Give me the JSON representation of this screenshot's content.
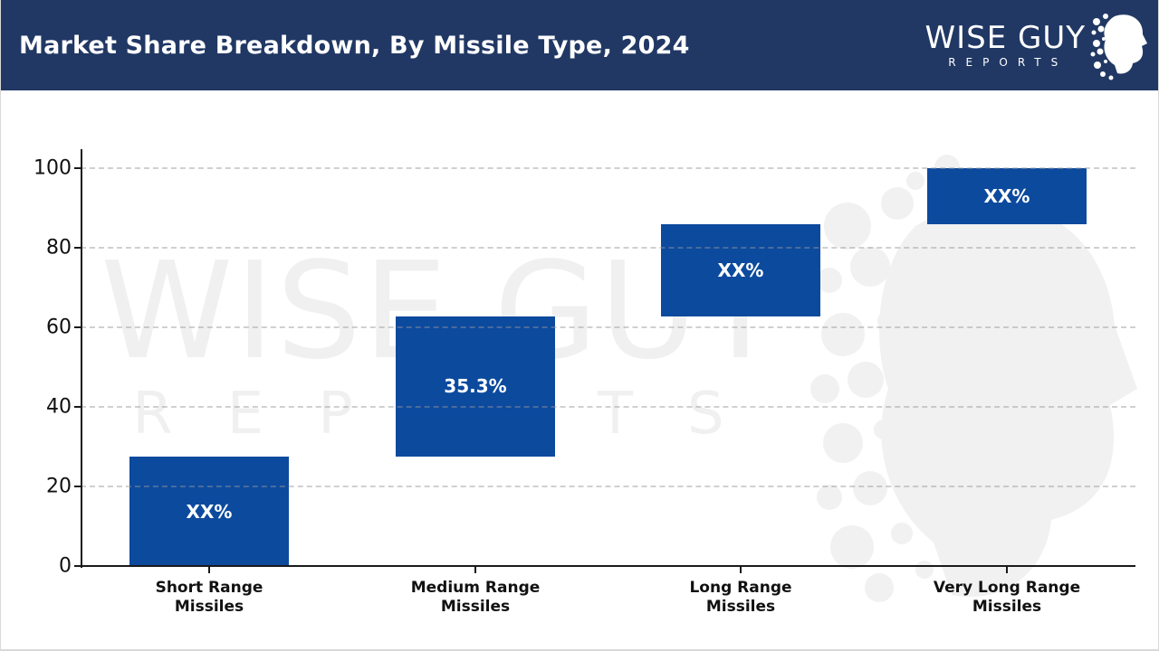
{
  "header": {
    "title": "Market Share Breakdown, By Missile Type, 2024",
    "bg_color": "#213864",
    "logo": {
      "line1": "WISE GUY",
      "line2": "REPORTS"
    }
  },
  "watermark": {
    "line1": "WISE GUY",
    "line2": "REPORTS"
  },
  "chart_data": {
    "type": "bar",
    "subtype": "stacked-waterfall",
    "title": "Market Share Breakdown, By Missile Type, 2024",
    "categories": [
      "Short Range Missiles",
      "Medium Range Missiles",
      "Long Range Missiles",
      "Very Long Range Missiles"
    ],
    "segments": [
      {
        "category_lines": [
          "Short Range",
          "Missiles"
        ],
        "value_label": "XX%",
        "start": 0,
        "end": 27.5
      },
      {
        "category_lines": [
          "Medium Range",
          "Missiles"
        ],
        "value_label": "35.3%",
        "start": 27.5,
        "end": 62.8
      },
      {
        "category_lines": [
          "Long Range",
          "Missiles"
        ],
        "value_label": "XX%",
        "start": 62.8,
        "end": 85.8
      },
      {
        "category_lines": [
          "Very Long Range",
          "Missiles"
        ],
        "value_label": "XX%",
        "start": 85.8,
        "end": 100
      }
    ],
    "ylabel": "",
    "xlabel": "",
    "ylim": [
      0,
      100
    ],
    "yticks": [
      0,
      20,
      40,
      60,
      80,
      100
    ],
    "grid": "horizontal-dashed",
    "legend": "none",
    "bar_color": "#0c4a9e",
    "bar_label_color": "#ffffff"
  }
}
